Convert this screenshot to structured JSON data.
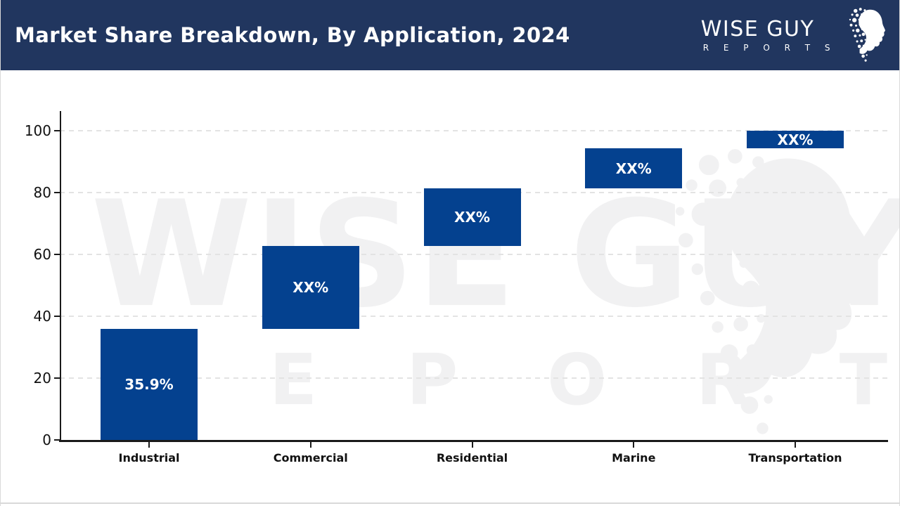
{
  "header": {
    "title": "Market Share Breakdown, By Application, 2024",
    "logo": {
      "line1": "WISE GUY",
      "line2": "R E P O R T S"
    }
  },
  "watermark": {
    "line1": "WISE GUY",
    "line2": "R E P O R T S"
  },
  "chart_data": {
    "type": "bar",
    "subtype": "waterfall",
    "title": "Market Share Breakdown, By Application, 2024",
    "categories": [
      "Industrial",
      "Commercial",
      "Residential",
      "Marine",
      "Transportation"
    ],
    "segments": [
      {
        "category": "Industrial",
        "start": 0,
        "end": 35.9,
        "label": "35.9%"
      },
      {
        "category": "Commercial",
        "start": 35.9,
        "end": 62.7,
        "label": "XX%"
      },
      {
        "category": "Residential",
        "start": 62.7,
        "end": 81.3,
        "label": "XX%"
      },
      {
        "category": "Marine",
        "start": 81.3,
        "end": 94.3,
        "label": "XX%"
      },
      {
        "category": "Transportation",
        "start": 94.3,
        "end": 100,
        "label": "XX%"
      }
    ],
    "yticks": [
      0,
      20,
      40,
      60,
      80,
      100
    ],
    "ylim": [
      0,
      107
    ],
    "xlabel": "",
    "ylabel": "",
    "grid": "horizontal-dashed",
    "legend": "none",
    "bar_color": "#04418f",
    "bar_label_color": "#ffffff",
    "axis_color": "#1a1a1a",
    "grid_color": "#e3e3e3",
    "header_color": "#21365f"
  }
}
